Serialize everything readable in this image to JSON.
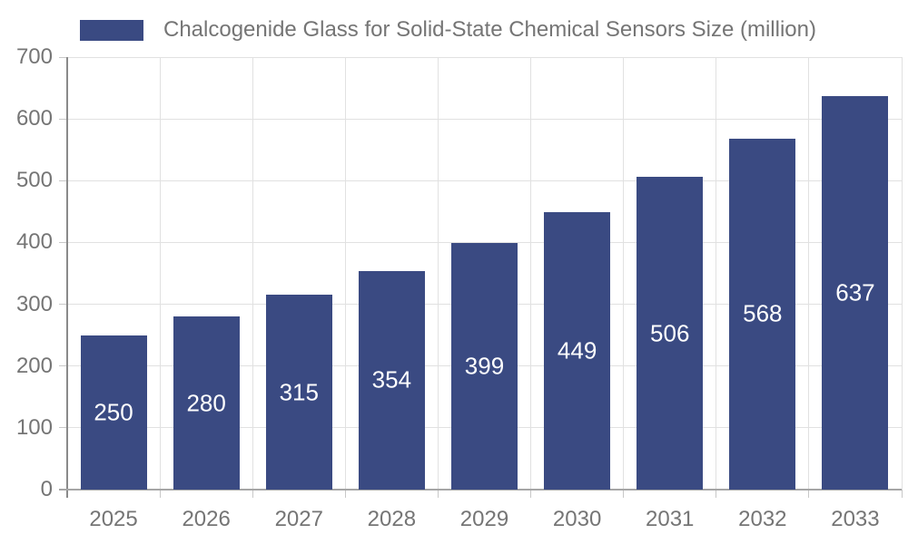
{
  "chart_data": {
    "type": "bar",
    "title": "Chalcogenide Glass for Solid-State Chemical Sensors Size (million)",
    "categories": [
      "2025",
      "2026",
      "2027",
      "2028",
      "2029",
      "2030",
      "2031",
      "2032",
      "2033"
    ],
    "values": [
      250,
      280,
      315,
      354,
      399,
      449,
      506,
      568,
      637
    ],
    "xlabel": "",
    "ylabel": "",
    "ylim": [
      0,
      700
    ],
    "yticks": [
      0,
      100,
      200,
      300,
      400,
      500,
      600,
      700
    ],
    "grid": true,
    "legend_position": "top-left",
    "colors": {
      "bar": "#3A4A82",
      "bar_value_text": "#FFFFFF",
      "axis_text": "#757575",
      "gridline": "#E1E1E1",
      "y_axis_line": "#8A8A8A",
      "x_axis_line": "#A6A6A6",
      "tick": "#C8C8C8",
      "background": "#FFFFFF"
    }
  }
}
